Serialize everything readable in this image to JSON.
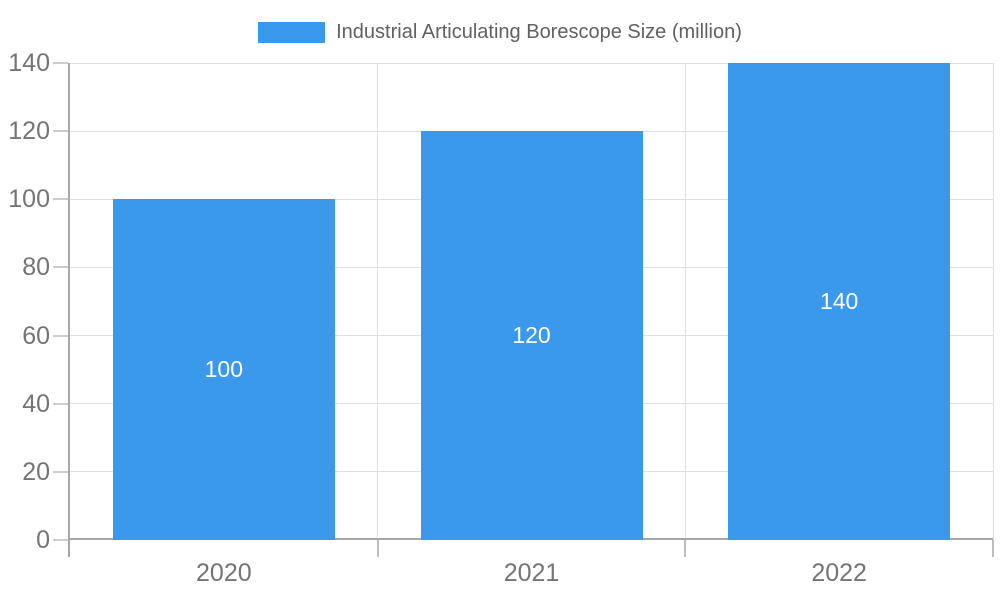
{
  "chart_data": {
    "type": "bar",
    "title": "Industrial Articulating Borescope Size (million)",
    "categories": [
      "2020",
      "2021",
      "2022"
    ],
    "values": [
      100,
      120,
      140
    ],
    "y_ticks": [
      0,
      20,
      40,
      60,
      80,
      100,
      120,
      140
    ],
    "ylim": [
      0,
      140
    ],
    "xlabel": "",
    "ylabel": "",
    "grid": true,
    "legend_position": "top",
    "data_labels": [
      "100",
      "120",
      "140"
    ],
    "colors": {
      "bar": "#3b99ec",
      "bar_value_text": "#ffffff",
      "gridline": "#e0e0e0",
      "axis_line": "#a8a8a8",
      "tick_stub": "#cccccc",
      "category_tick": "#bdbdbd",
      "tick_label_text": "#757575",
      "legend_text": "#616161",
      "background": "#ffffff"
    }
  }
}
